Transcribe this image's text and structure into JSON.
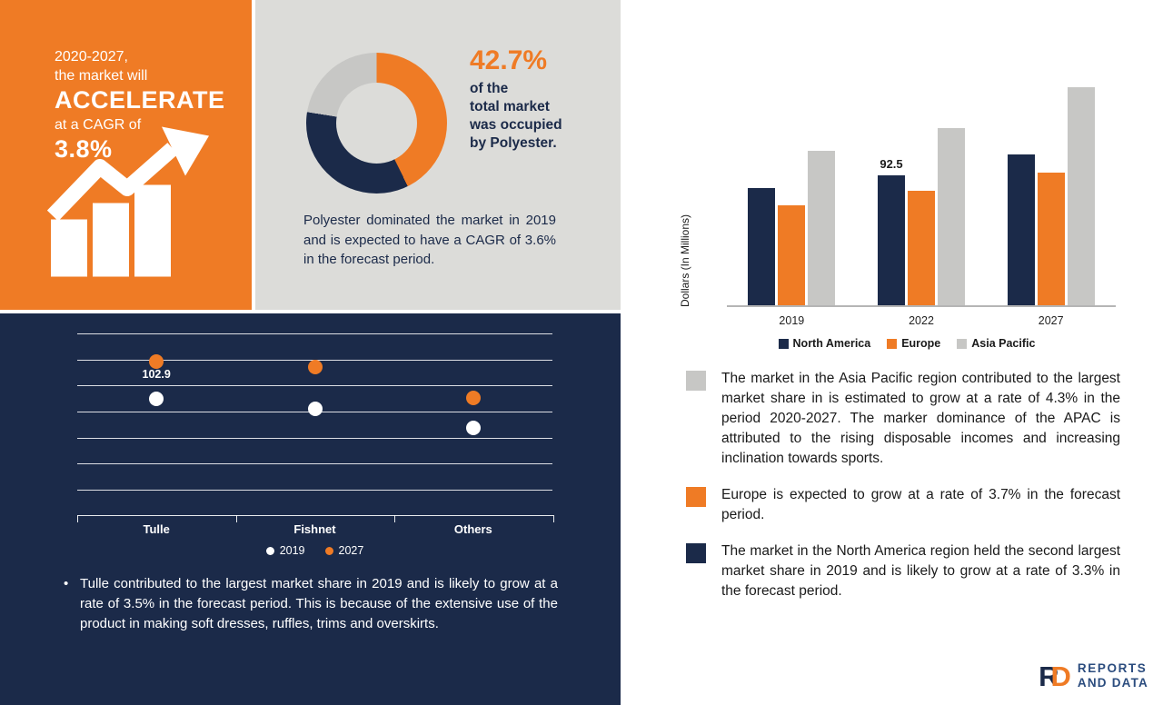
{
  "theme": {
    "orange": "#EF7B25",
    "navy": "#1B2A49",
    "bar_gray": "#C7C7C5",
    "panel_gray": "#DCDCD9"
  },
  "promo": {
    "line1": "2020-2027,",
    "line2": "the market will",
    "line3": "ACCELERATE",
    "line4": "at a CAGR of",
    "line5": "3.8%"
  },
  "donut_section": {
    "headline_pct": "42.7%",
    "headline_lines": [
      "of the",
      "total market",
      "was occupied",
      "by Polyester."
    ],
    "caption": "Polyester dominated the market in 2019 and is expected to have a CAGR of 3.6% in the forecast period."
  },
  "materials_section": {
    "bullet_mark": "•",
    "bullet": "Tulle contributed to the largest market share in 2019 and is likely to grow at a rate of 3.5% in the forecast period. This is because of the extensive use of the product in making soft dresses, ruffles, trims and overskirts."
  },
  "regions_section": {
    "insights": [
      {
        "region": "Asia Pacific",
        "color": "#C7C7C5",
        "text": "The market in the Asia Pacific region contributed to the largest market share in is estimated to grow at a rate of 4.3% in the period 2020-2027. The marker dominance of the APAC is attributed to the rising disposable incomes and increasing inclination towards sports."
      },
      {
        "region": "Europe",
        "color": "#EF7B25",
        "text": "Europe is expected to grow at a rate of 3.7% in the forecast period."
      },
      {
        "region": "North America",
        "color": "#1B2A49",
        "text": "The market in the North America region held the second largest market share in 2019 and is likely to grow at a rate of 3.3% in the forecast period."
      }
    ]
  },
  "logo": {
    "mark_r": "R",
    "mark_d": "D",
    "line1": "REPORTS",
    "line2": "AND DATA"
  },
  "chart_data": [
    {
      "type": "pie",
      "title": "42.7% of the total market was occupied by Polyester.",
      "labels": [
        "Polyester",
        "",
        ""
      ],
      "values": [
        42.7,
        34.8,
        22.5
      ],
      "colors": [
        "#EF7B25",
        "#1B2A49",
        "#C7C7C5"
      ],
      "note": "donut chart; only Polyester share (42.7%) labeled, other segment values estimated from arc angles"
    },
    {
      "type": "scatter",
      "title": "",
      "categories": [
        "Tulle",
        "Fishnet",
        "Others"
      ],
      "series": [
        {
          "name": "2019",
          "color": "#FFFFFF",
          "values": [
            93.3,
            90.8,
            85.7
          ]
        },
        {
          "name": "2027",
          "color": "#EF7B25",
          "values": [
            102.9,
            101.3,
            93.5
          ]
        }
      ],
      "data_labels": [
        {
          "series": "2027",
          "category": "Tulle",
          "text": "102.9"
        }
      ],
      "ylim": [
        70,
        110
      ],
      "gridline_count": 7,
      "legend_position": "bottom",
      "note": "only 102.9 labeled on chart; other values estimated from dot positions"
    },
    {
      "type": "bar",
      "title": "",
      "ylabel": "Dollars (In Millions)",
      "categories": [
        "2019",
        "2022",
        "2027"
      ],
      "series": [
        {
          "name": "North America",
          "color": "#1B2A49",
          "values": [
            83,
            92.5,
            107
          ]
        },
        {
          "name": "Europe",
          "color": "#EF7B25",
          "values": [
            71,
            81,
            94
          ]
        },
        {
          "name": "Asia Pacific",
          "color": "#C7C7C5",
          "values": [
            110,
            126,
            155
          ]
        }
      ],
      "data_labels": [
        {
          "series": "North America",
          "category": "2022",
          "text": "92.5"
        }
      ],
      "ylim": [
        0,
        160
      ],
      "legend_position": "bottom",
      "note": "only 92.5 labeled on chart; other values estimated from bar heights"
    }
  ]
}
